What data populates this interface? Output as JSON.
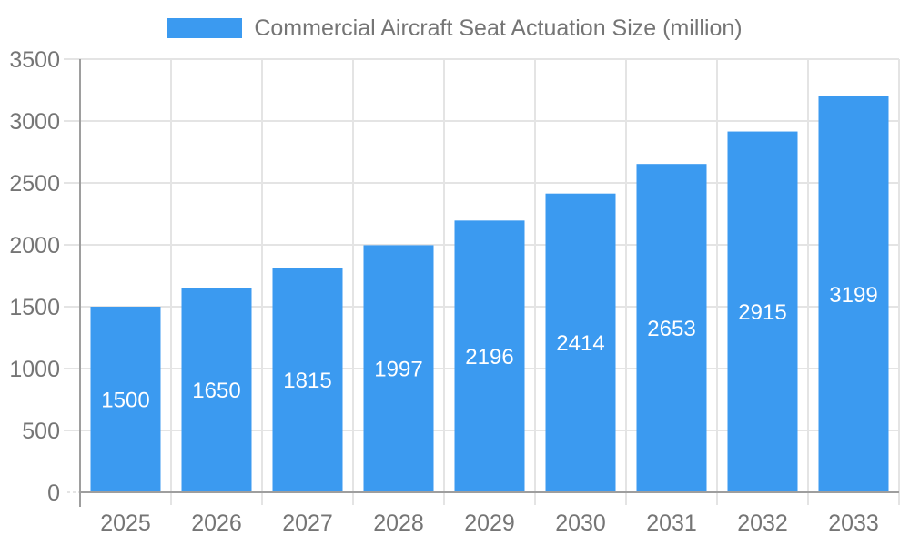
{
  "legend": {
    "label": "Commercial Aircraft Seat Actuation Size (million)"
  },
  "chart_data": {
    "type": "bar",
    "title": "Commercial Aircraft Seat Actuation Size (million)",
    "series_name": "Commercial Aircraft Seat Actuation Size (million)",
    "categories": [
      "2025",
      "2026",
      "2027",
      "2028",
      "2029",
      "2030",
      "2031",
      "2032",
      "2033"
    ],
    "values": [
      1500,
      1650,
      1815,
      1997,
      2196,
      2414,
      2653,
      2915,
      3199
    ],
    "xlabel": "",
    "ylabel": "",
    "ylim": [
      0,
      3500
    ],
    "yticks": [
      0,
      500,
      1000,
      1500,
      2000,
      2500,
      3000,
      3500
    ],
    "grid": true,
    "legend_position": "top-center",
    "bar_labels": "inside-center-white",
    "colors": {
      "bar": "#3B9AF0",
      "grid": "#E4E4E4",
      "axis": "#9E9E9E",
      "tick_text": "#757575",
      "title_text": "#757575",
      "bar_label_text": "#FFFFFF",
      "background": "#FFFFFF"
    }
  }
}
